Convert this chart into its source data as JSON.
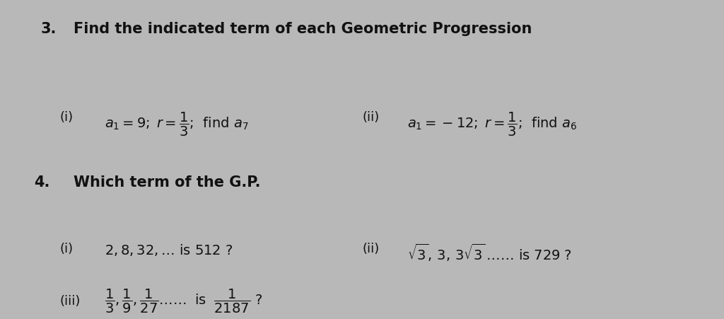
{
  "bg_color": "#b8b8b8",
  "paper_color": "#d8d4cc",
  "text_color": "#111111",
  "title_number": "3.",
  "title_text": "Find the indicated term of each Geometric Progression",
  "q3_i_label": "(i)",
  "q3_i_text": "$a_1 = 9;\\; r = \\dfrac{1}{3}$;  find $a_7$",
  "q3_ii_label": "(ii)",
  "q3_ii_text": "$a_1 = -12;\\; r = \\dfrac{1}{3}$;  find $a_6$",
  "q4_number": "4.",
  "q4_text": "Which term of the G.P.",
  "q4_i_label": "(i)",
  "q4_i_text": "$2, 8, 32, \\ldots$ is $512$ ?",
  "q4_ii_label": "(ii)",
  "q4_ii_text": "$\\sqrt{3},\\, 3,\\, 3\\sqrt{3}\\, \\ldots\\ldots$ is $729$ ?",
  "q4_iii_label": "(iii)",
  "q4_iii_text": "$\\dfrac{1}{3}, \\dfrac{1}{9}, \\dfrac{1}{27} \\ldots\\ldots\\;$ is $\\;\\dfrac{1}{2187}$ ?"
}
